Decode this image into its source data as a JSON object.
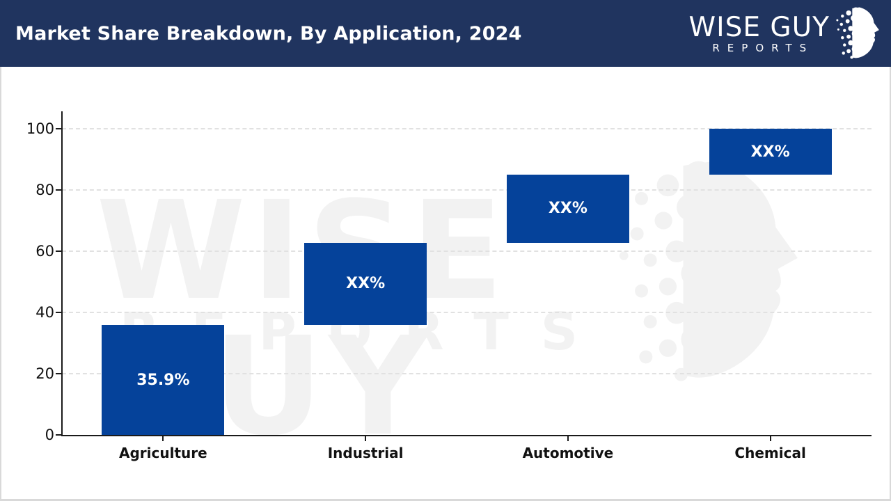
{
  "header": {
    "title": "Market Share Breakdown, By Application, 2024",
    "background": "#20345f",
    "logo": {
      "line1": "WISE GUY",
      "line2": "REPORTS"
    }
  },
  "watermark": {
    "line1": "WISE GUY",
    "line2": "REPORTS"
  },
  "colors": {
    "bar_blue": "#05429a",
    "header_navy": "#20345f",
    "gridline": "#e1e1e1",
    "axis": "#1a1a1a",
    "watermark_gray": "#f2f2f2"
  },
  "chart_data": {
    "type": "bar",
    "subtype": "stacked-waterfall",
    "title": "Market Share Breakdown, By Application, 2024",
    "xlabel": "",
    "ylabel": "",
    "categories": [
      "Agriculture",
      "Industrial",
      "Automotive",
      "Chemical"
    ],
    "segments": [
      {
        "category": "Agriculture",
        "start": 0,
        "end": 35.9,
        "label": "35.9%"
      },
      {
        "category": "Industrial",
        "start": 35.9,
        "end": 62.8,
        "label": "XX%"
      },
      {
        "category": "Automotive",
        "start": 62.8,
        "end": 85.0,
        "label": "XX%"
      },
      {
        "category": "Chemical",
        "start": 85.0,
        "end": 100,
        "label": "XX%"
      }
    ],
    "yticks": [
      0,
      20,
      40,
      60,
      80,
      100
    ],
    "ylim": [
      0,
      105.7
    ],
    "grid": "horizontal dashed, at 20/40/60/80/100",
    "legend": "none",
    "bar_color": "#05429a",
    "bar_label_color": "#ffffff"
  }
}
